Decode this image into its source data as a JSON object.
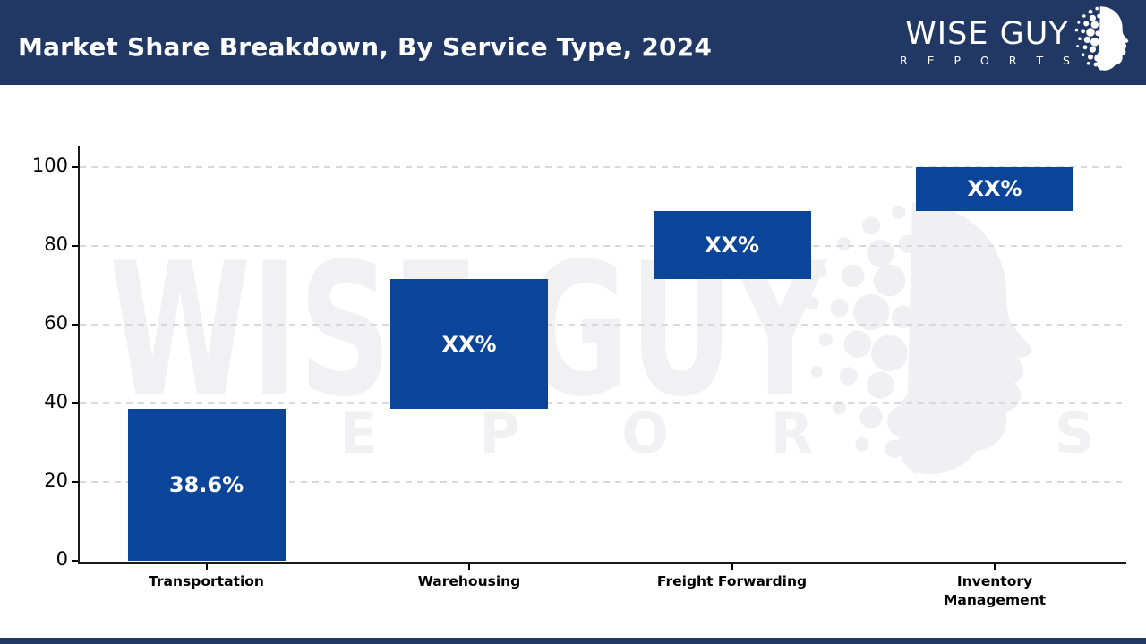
{
  "header": {
    "title": "Market Share Breakdown, By Service Type, 2024",
    "bg_color": "#213865",
    "logo": {
      "line1": "WISE GUY",
      "line2": "R E P O R T S"
    }
  },
  "watermark": {
    "line1": "WISE GUY",
    "line2": "R E P O R T S"
  },
  "chart_data": {
    "type": "bar",
    "subtype": "waterfall",
    "title": "Market Share Breakdown, By Service Type, 2024",
    "categories": [
      "Transportation",
      "Warehousing",
      "Freight Forwarding",
      "Inventory\nManagement"
    ],
    "segments": [
      {
        "category": "Transportation",
        "start": 0,
        "end": 38.6,
        "label": "38.6%"
      },
      {
        "category": "Warehousing",
        "start": 38.6,
        "end": 71.6,
        "label": "XX%"
      },
      {
        "category": "Freight Forwarding",
        "start": 71.6,
        "end": 88.9,
        "label": "XX%"
      },
      {
        "category": "Inventory Management",
        "start": 88.9,
        "end": 100,
        "label": "XX%"
      }
    ],
    "yticks": [
      0,
      20,
      40,
      60,
      80,
      100
    ],
    "ylim": [
      0,
      105
    ],
    "xlabel": "",
    "ylabel": "",
    "grid": "horizontal-dashed",
    "legend": "none",
    "bar_color": "#0b4599",
    "bar_label_color": "#ffffff",
    "axis_color": "#1a1a1a",
    "gridline_color": "#d9d9d9"
  }
}
